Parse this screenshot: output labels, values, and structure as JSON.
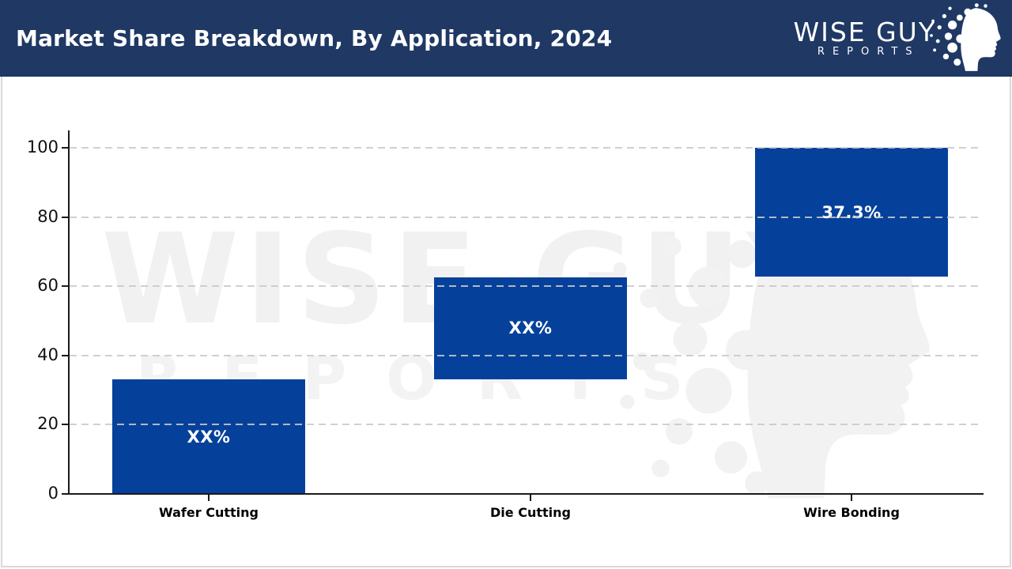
{
  "header": {
    "title": "Market Share Breakdown, By Application, 2024",
    "logo": {
      "brand_line1": "WISE GUY",
      "brand_line2": "REPORTS"
    }
  },
  "watermark": {
    "line1": "WISE GUY",
    "line2": "REPORTS"
  },
  "colors": {
    "header_bg": "#1f3864",
    "bar_blue": "#05419b",
    "gridline": "#c9c9c9",
    "axis": "#1a1a1a",
    "watermark_gray": "#f1f1f1"
  },
  "chart_data": {
    "type": "bar",
    "subtype": "waterfall",
    "title": "Market Share Breakdown, By Application, 2024",
    "categories": [
      "Wafer Cutting",
      "Die Cutting",
      "Wire Bonding"
    ],
    "segments": [
      {
        "category": "Wafer Cutting",
        "start": 0,
        "end": 33.1,
        "value_label": "XX%"
      },
      {
        "category": "Die Cutting",
        "start": 33.1,
        "end": 62.6,
        "value_label": "XX%"
      },
      {
        "category": "Wire Bonding",
        "start": 62.7,
        "end": 100,
        "value_label": "37.3%",
        "value": 37.3
      }
    ],
    "yticks": [
      0,
      20,
      40,
      60,
      80,
      100
    ],
    "ylim": [
      0,
      105
    ],
    "xlabel": "",
    "ylabel": "",
    "grid": {
      "horizontal": true,
      "style": "dashed",
      "drawn_over_bars": true
    },
    "legend": null,
    "bar_color": "#05419b"
  }
}
